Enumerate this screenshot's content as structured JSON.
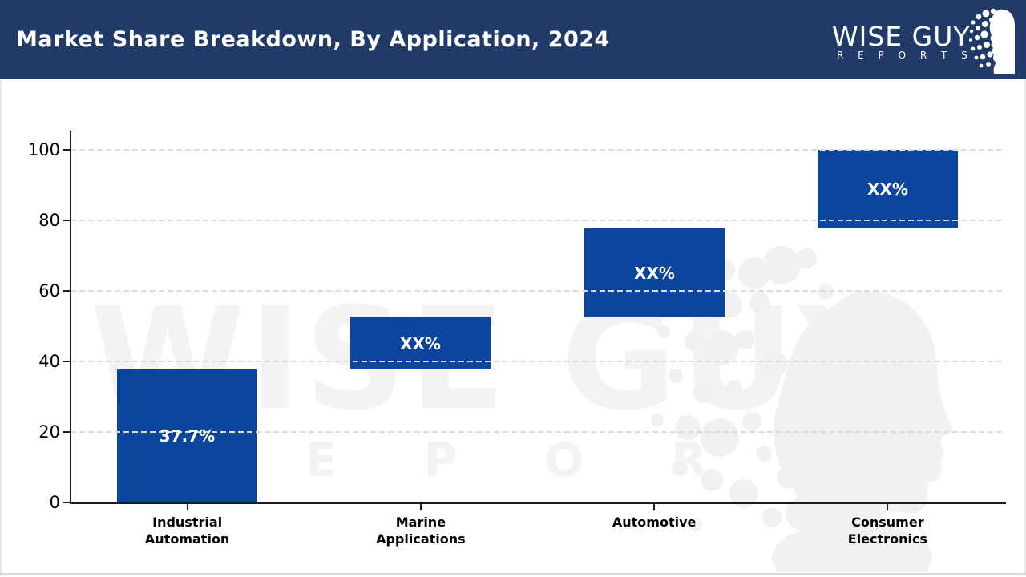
{
  "header": {
    "title": "Market Share Breakdown, By Application, 2024",
    "bg_color": "#213a67",
    "logo": {
      "line1": "WISE GUY",
      "line2": "R E P O R T S"
    }
  },
  "watermark": {
    "line1": "WISE GUY",
    "line2": "R E P O R T S"
  },
  "chart_data": {
    "type": "bar",
    "subtype": "waterfall",
    "title": "Market Share Breakdown, By Application, 2024",
    "categories": [
      "Industrial Automation",
      "Marine Applications",
      "Automotive",
      "Consumer Electronics"
    ],
    "tick_labels": [
      "Industrial\nAutomation",
      "Marine\nApplications",
      "Automotive",
      "Consumer\nElectronics"
    ],
    "segments": [
      {
        "category": "Industrial Automation",
        "start": 0,
        "end": 37.7,
        "label": "37.7%"
      },
      {
        "category": "Marine Applications",
        "start": 37.7,
        "end": 52.5,
        "label": "XX%"
      },
      {
        "category": "Automotive",
        "start": 52.5,
        "end": 77.7,
        "label": "XX%"
      },
      {
        "category": "Consumer Electronics",
        "start": 77.7,
        "end": 100,
        "label": "XX%"
      }
    ],
    "ylim": [
      0,
      100
    ],
    "yticks": [
      0,
      20,
      40,
      60,
      80,
      100
    ],
    "xlabel": "",
    "ylabel": "",
    "legend": "none",
    "grid": "horizontal dashed gridlines drawn over bars",
    "bar_color": "#0c459e",
    "bar_label_color": "#ffffff"
  }
}
